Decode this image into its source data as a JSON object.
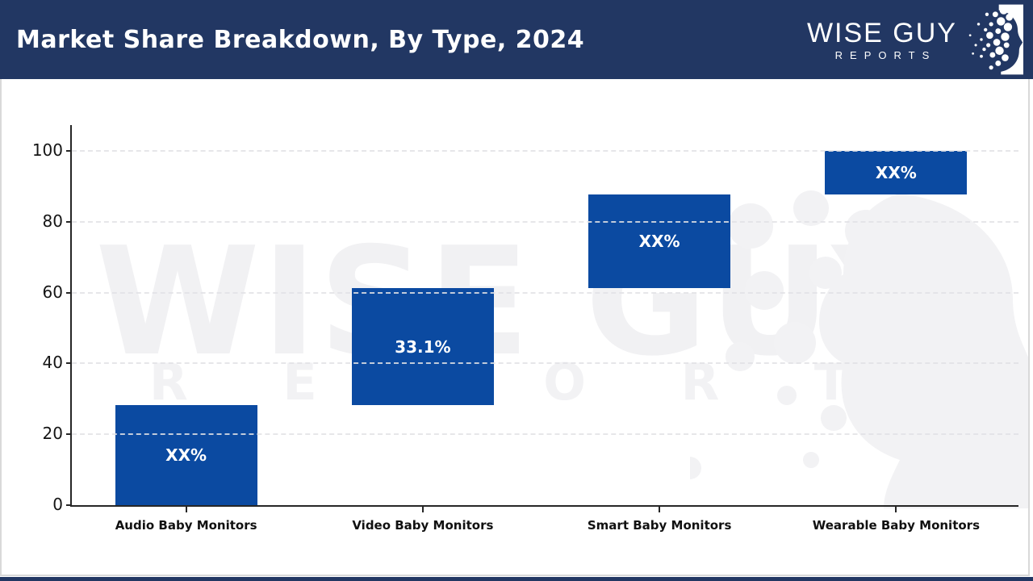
{
  "header": {
    "title": "Market Share Breakdown, By Type, 2024",
    "logo": {
      "line1": "WISE GUY",
      "line2": "REPORTS"
    }
  },
  "watermark": {
    "line1": "WISE GUY",
    "line2": "R E P O R T S"
  },
  "chart_data": {
    "type": "bar",
    "subtype": "waterfall",
    "title": "Market Share Breakdown, By Type, 2024",
    "xlabel": "",
    "ylabel": "",
    "ylim": [
      0,
      100
    ],
    "yticks": [
      0,
      20,
      40,
      60,
      80,
      100
    ],
    "grid": "horizontal-dashed",
    "legend": "none",
    "categories": [
      "Audio Baby Monitors",
      "Video Baby Monitors",
      "Smart Baby Monitors",
      "Wearable Baby Monitors"
    ],
    "segments": [
      {
        "category": "Audio Baby Monitors",
        "start": 0,
        "end": 28.2,
        "label": "XX%"
      },
      {
        "category": "Video Baby Monitors",
        "start": 28.2,
        "end": 61.3,
        "label": "33.1%"
      },
      {
        "category": "Smart Baby Monitors",
        "start": 61.3,
        "end": 87.7,
        "label": "XX%"
      },
      {
        "category": "Wearable Baby Monitors",
        "start": 87.7,
        "end": 100,
        "label": "XX%"
      }
    ],
    "bar_color": "#0b4aa1",
    "bar_label_color": "#ffffff",
    "axis_color": "#262626",
    "header_color": "#223763"
  }
}
